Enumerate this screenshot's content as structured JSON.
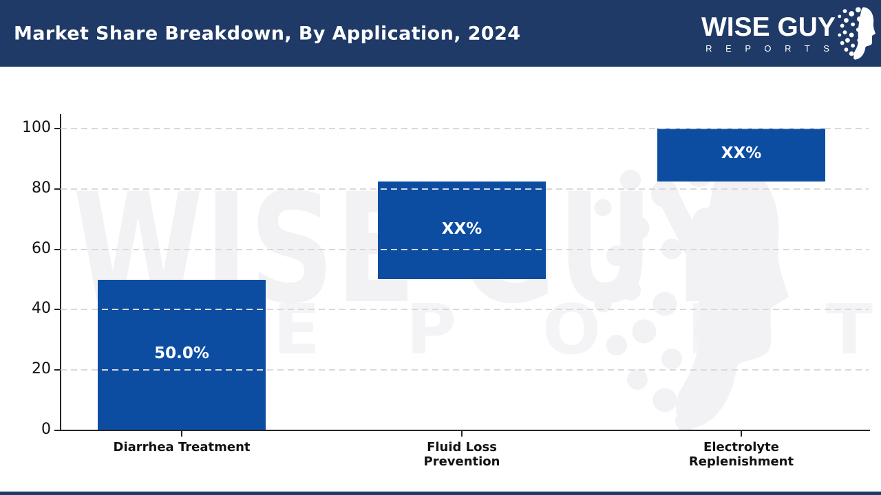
{
  "header": {
    "title": "Market Share Breakdown, By Application, 2024",
    "logo": {
      "line1": "WISE GUY",
      "line2": "R E P O R T S"
    }
  },
  "watermark": {
    "line1": "WISE GUY",
    "line2": "R E P O R T S"
  },
  "footer": {},
  "colors": {
    "header_bg": "#1f3a66",
    "bar": "#0c4da2",
    "bar_label": "#ffffff",
    "grid": "#d9d9d9",
    "axis": "#262626",
    "watermark": "#f2f2f5"
  },
  "chart_data": {
    "type": "bar",
    "subtype": "stacked-waterfall",
    "title": "Market Share Breakdown, By Application, 2024",
    "categories": [
      "Diarrhea Treatment",
      "Fluid Loss Prevention",
      "Electrolyte Replenishment"
    ],
    "bars": [
      {
        "category": "Diarrhea Treatment",
        "label_lines": [
          "Diarrhea Treatment"
        ],
        "start": 0,
        "end": 50,
        "value": 50.0,
        "label": "50.0%"
      },
      {
        "category": "Fluid Loss Prevention",
        "label_lines": [
          "Fluid Loss",
          "Prevention"
        ],
        "start": 50,
        "end": 82.5,
        "value": 32.5,
        "label": "XX%"
      },
      {
        "category": "Electrolyte Replenishment",
        "label_lines": [
          "Electrolyte",
          "Replenishment"
        ],
        "start": 82.5,
        "end": 100,
        "value": 17.5,
        "label": "XX%"
      }
    ],
    "ylim": [
      0,
      100
    ],
    "yticks": [
      0,
      20,
      40,
      60,
      80,
      100
    ],
    "xlabel": "",
    "ylabel": "",
    "grid": "dashed horizontal, drawn over bars",
    "legend": "none",
    "bar_color": "#0c4da2",
    "label_color": "#ffffff"
  }
}
